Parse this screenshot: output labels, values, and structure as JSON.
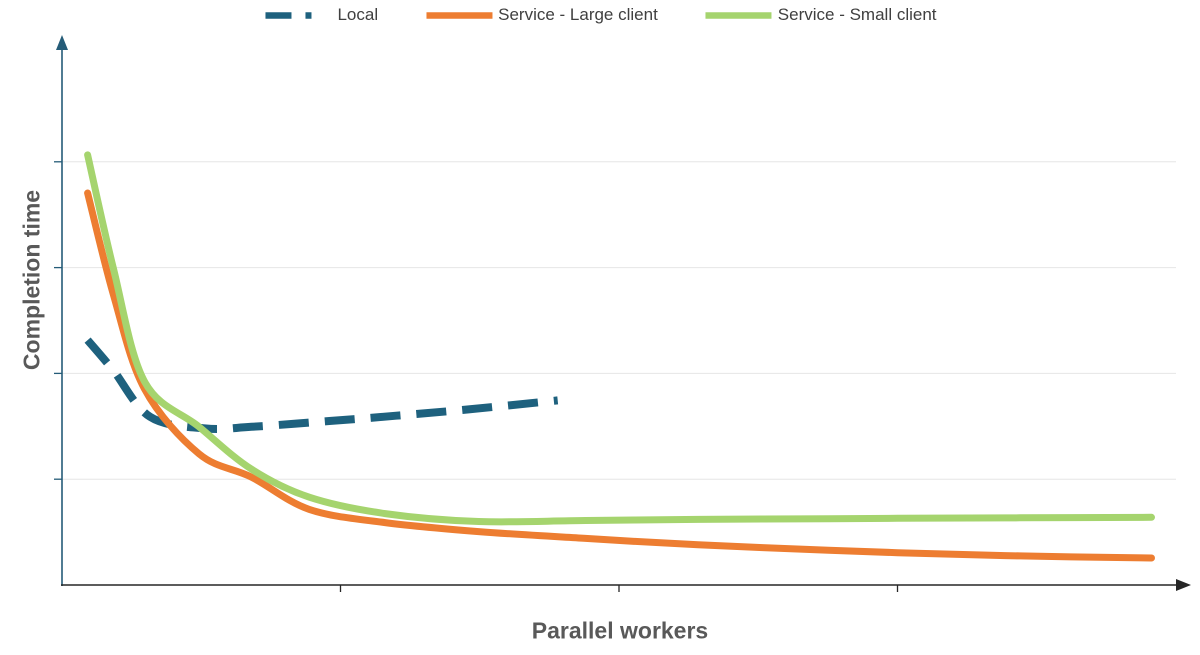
{
  "chart_data": {
    "type": "line",
    "title": "",
    "xlabel": "Parallel workers",
    "ylabel": "Completion time",
    "grid": "horizontal",
    "legend_position": "top-center",
    "x_axis": {
      "label": "Parallel workers",
      "min_percent": 0,
      "max_percent": 100,
      "tick_positions_percent": [
        25,
        50,
        75
      ],
      "tick_labels": [],
      "has_arrow": true
    },
    "y_axis": {
      "label": "Completion time",
      "min": 0,
      "max": 100,
      "gridline_values": [
        20,
        40,
        60,
        80
      ],
      "tick_labels": [],
      "has_arrow": true
    },
    "series": [
      {
        "name": "Local",
        "color": "#1E617E",
        "style": "dashed",
        "dash": [
          30,
          16
        ],
        "line_width": 8,
        "points": [
          [
            2.3,
            46.3
          ],
          [
            4.6,
            40.6
          ],
          [
            7.9,
            31.8
          ],
          [
            12.8,
            29.6
          ],
          [
            17.0,
            29.9
          ],
          [
            24.0,
            31.0
          ],
          [
            30.0,
            32.0
          ],
          [
            36.5,
            33.2
          ],
          [
            44.5,
            34.9
          ]
        ]
      },
      {
        "name": "Service - Large client",
        "color": "#ED7D31",
        "style": "solid",
        "dash": [],
        "line_width": 7,
        "points": [
          [
            2.3,
            74.1
          ],
          [
            4.6,
            55.0
          ],
          [
            7.4,
            37.1
          ],
          [
            12.3,
            24.8
          ],
          [
            17.0,
            20.4
          ],
          [
            22.2,
            14.3
          ],
          [
            29.0,
            11.8
          ],
          [
            37.4,
            10.1
          ],
          [
            47.0,
            8.8
          ],
          [
            57.1,
            7.6
          ],
          [
            66.0,
            6.8
          ],
          [
            75.0,
            6.1
          ],
          [
            86.0,
            5.5
          ],
          [
            97.8,
            5.1
          ]
        ]
      },
      {
        "name": "Service - Small client",
        "color": "#A5D46E",
        "style": "solid",
        "dash": [],
        "line_width": 7,
        "points": [
          [
            2.3,
            81.3
          ],
          [
            4.6,
            60.0
          ],
          [
            7.4,
            38.5
          ],
          [
            12.3,
            29.9
          ],
          [
            17.0,
            21.9
          ],
          [
            22.2,
            16.6
          ],
          [
            29.0,
            13.5
          ],
          [
            37.4,
            12.0
          ],
          [
            47.0,
            12.2
          ],
          [
            57.1,
            12.4
          ],
          [
            66.0,
            12.5
          ],
          [
            75.0,
            12.6
          ],
          [
            86.0,
            12.7
          ],
          [
            97.8,
            12.8
          ]
        ]
      }
    ]
  },
  "colors": {
    "gridline": "#E6E6E6",
    "y_axis": "#255C78",
    "x_axis": "#262626",
    "axis_title_text": "#595959",
    "legend_text": "#404040"
  }
}
